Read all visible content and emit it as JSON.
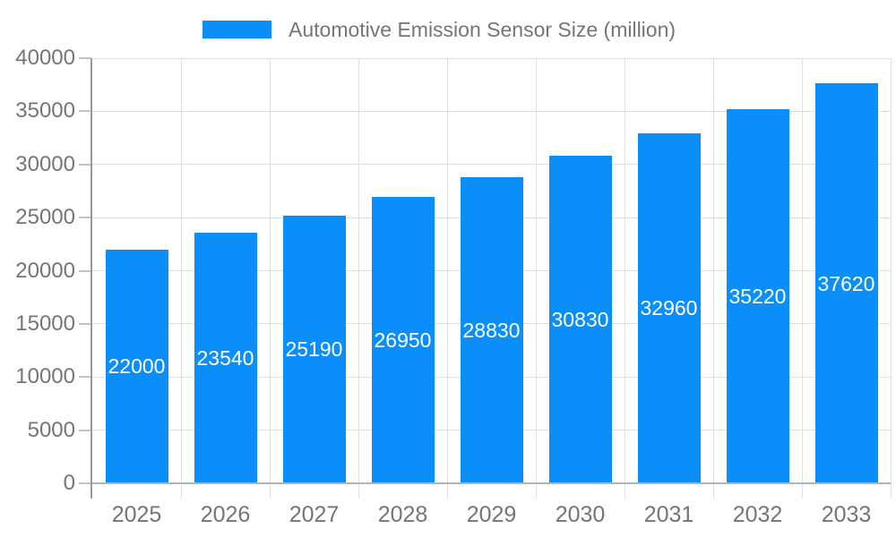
{
  "chart_data": {
    "type": "bar",
    "title": "Automotive Emission Sensor Size (million)",
    "categories": [
      "2025",
      "2026",
      "2027",
      "2028",
      "2029",
      "2030",
      "2031",
      "2032",
      "2033"
    ],
    "values": [
      22000,
      23540,
      25190,
      26950,
      28830,
      30830,
      32960,
      35220,
      37620
    ],
    "xlabel": "",
    "ylabel": "",
    "ylim": [
      0,
      40000
    ],
    "yticks": [
      0,
      5000,
      10000,
      15000,
      20000,
      25000,
      30000,
      35000,
      40000
    ],
    "ytick_labels": [
      "0",
      "5000",
      "10000",
      "15000",
      "20000",
      "25000",
      "30000",
      "35000",
      "40000"
    ],
    "grid": true,
    "legend_position": "top-center",
    "bar_color": "#0a8ef9",
    "value_label_color": "#ffffff"
  },
  "colors": {
    "bar": "#0a8ef9",
    "axis_text": "#757575",
    "gridline": "#e0e0e0",
    "baseline": "#b3b3b3",
    "axis_line": "#999999",
    "tick": "#c2c2c2",
    "background": "#ffffff"
  }
}
